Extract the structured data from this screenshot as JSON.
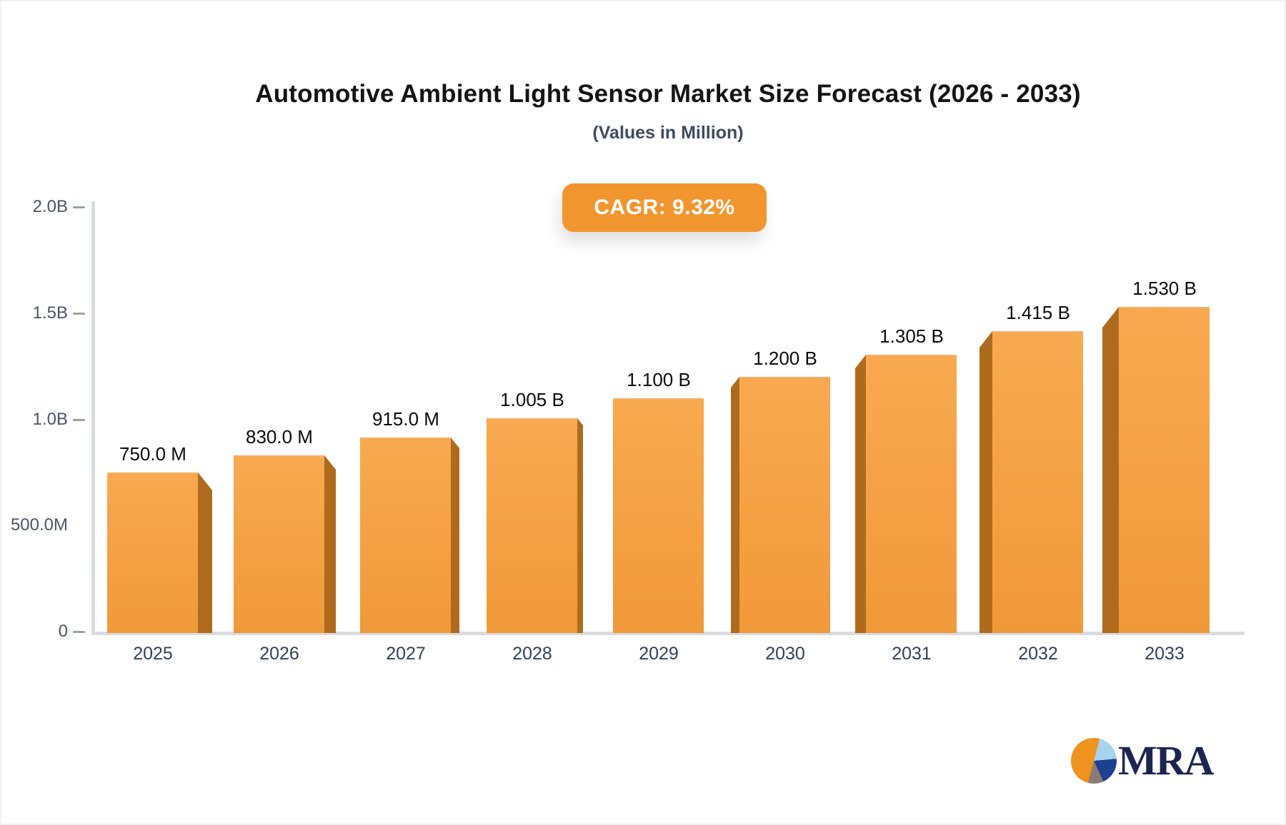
{
  "title": "Automotive Ambient Light Sensor Market Size Forecast (2026 - 2033)",
  "subtitle": "(Values in Million)",
  "cagr_badge": "CAGR: 9.32%",
  "chart_data": {
    "type": "bar",
    "title": "Automotive Ambient Light Sensor Market Size Forecast (2026 - 2033)",
    "subtitle": "(Values in Million)",
    "cagr_percent": 9.32,
    "categories": [
      "2025",
      "2026",
      "2027",
      "2028",
      "2029",
      "2030",
      "2031",
      "2032",
      "2033"
    ],
    "values_millions": [
      750,
      830,
      915,
      1005,
      1100,
      1200,
      1305,
      1415,
      1530
    ],
    "value_labels": [
      "750.0 M",
      "830.0 M",
      "915.0 M",
      "1.005 B",
      "1.100 B",
      "1.200 B",
      "1.305 B",
      "1.415 B",
      "1.530 B"
    ],
    "ylim_millions": [
      0,
      2000
    ],
    "yticks": [
      {
        "label": "2.0B",
        "value_millions": 2000,
        "dash": true
      },
      {
        "label": "1.5B",
        "value_millions": 1500,
        "dash": true
      },
      {
        "label": "1.0B",
        "value_millions": 1000,
        "dash": true
      },
      {
        "label": "500.0M",
        "value_millions": 500,
        "dash": false
      },
      {
        "label": "0",
        "value_millions": 0,
        "dash": true
      }
    ],
    "grid": false,
    "legend": false,
    "effect": "3d-perspective-columns",
    "bar_color_top": "#F8A94F",
    "bar_color_bottom": "#F0993A",
    "bar_side_color": "#AF6B1D"
  },
  "logo": {
    "text": "MRA",
    "icon": "pie-chart",
    "pie_colors": [
      "#A7D3F1",
      "#1F3F8F",
      "#8B7B74",
      "#F0921F"
    ],
    "text_color": "#1B2550"
  },
  "colors": {
    "badge_bg": "#F1962F",
    "badge_text": "#FFFFFF",
    "axis_line": "#D9DCE1",
    "tick_dash": "#9AA1AB",
    "ytick_text": "#4A5568",
    "year_text": "#32415A",
    "value_text": "#0B0B0B",
    "title_text": "#141414",
    "subtitle_text": "#3D4B60",
    "background": "#FFFFFF"
  }
}
